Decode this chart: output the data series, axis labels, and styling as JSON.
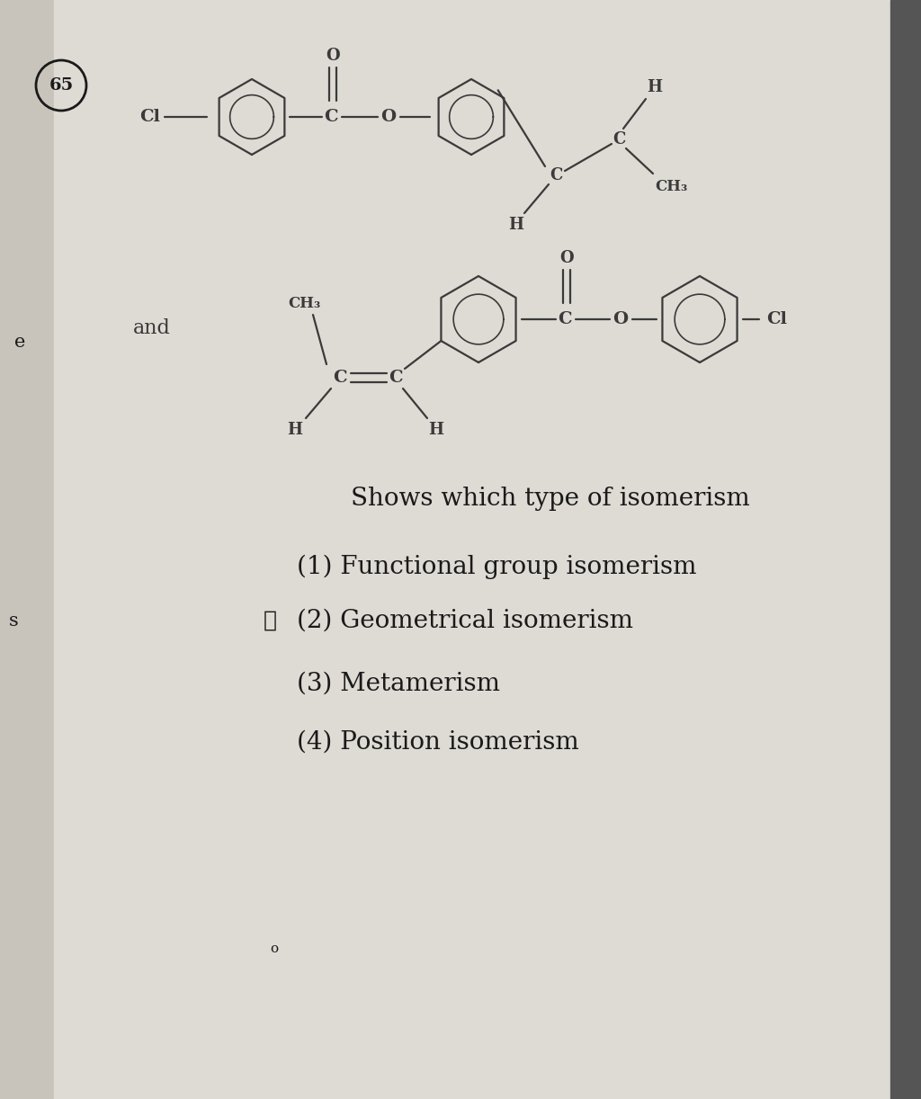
{
  "question_number": "65",
  "question_text": "Shows which type of isomerism",
  "options": [
    "(1) Functional group isomerism",
    "(2) Geometrical isomerism",
    "(3) Metamerism",
    "(4) Position isomerism"
  ],
  "bg_color": "#c8c4bc",
  "paper_color": "#e8e4de",
  "text_color": "#1a1a1a",
  "chem_color": "#3a3a3a",
  "font_size_options": 20,
  "font_size_question": 20
}
